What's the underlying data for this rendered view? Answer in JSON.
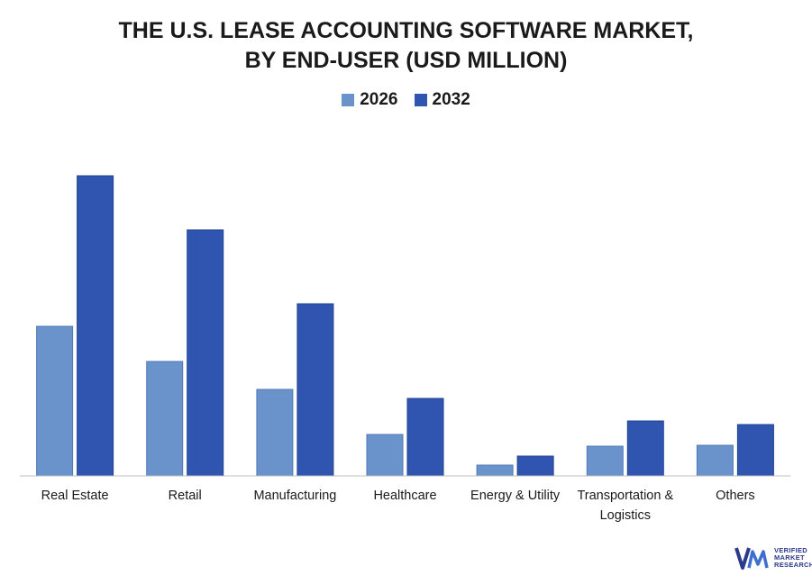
{
  "chart_data": {
    "type": "bar",
    "title_lines": [
      "THE U.S. LEASE ACCOUNTING SOFTWARE MARKET,",
      "BY END-USER (USD MILLION)"
    ],
    "categories": [
      [
        "Real Estate"
      ],
      [
        "Retail"
      ],
      [
        "Manufacturing"
      ],
      [
        "Healthcare"
      ],
      [
        "Energy & Utility"
      ],
      [
        "Transportation &",
        "Logistics"
      ],
      [
        "Others"
      ]
    ],
    "series": [
      {
        "name": "2026",
        "color": "#6a93cc",
        "values": [
          166,
          127,
          96,
          46,
          12,
          33,
          34
        ]
      },
      {
        "name": "2032",
        "color": "#2f55b0",
        "values": [
          333,
          273,
          191,
          86,
          22,
          61,
          57
        ]
      }
    ],
    "ylim": [
      0,
      350
    ],
    "grid": false,
    "legend_position": "top-center"
  },
  "logo": {
    "icon": "vmr-logo-icon",
    "lines": [
      "VERIFIED",
      "MARKET",
      "RESEARCH"
    ]
  }
}
